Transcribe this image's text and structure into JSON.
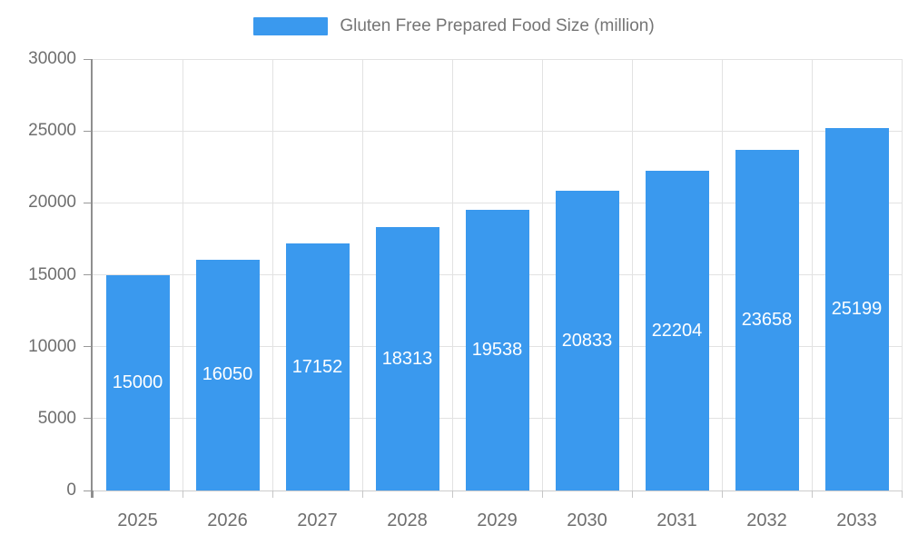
{
  "legend": {
    "label": "Gluten Free Prepared Food Size (million)"
  },
  "colors": {
    "bar": "#3A99EE",
    "value_label": "#FFFFFF",
    "axis_text": "#6E6E6E",
    "legend_text": "#757575",
    "gridline": "#E2E2E2",
    "axis_line": "#8F8F8F"
  },
  "chart_data": {
    "type": "bar",
    "title": "",
    "xlabel": "",
    "ylabel": "",
    "categories": [
      "2025",
      "2026",
      "2027",
      "2028",
      "2029",
      "2030",
      "2031",
      "2032",
      "2033"
    ],
    "series": [
      {
        "name": "Gluten Free Prepared Food Size (million)",
        "values": [
          15000,
          16050,
          17152,
          18313,
          19538,
          20833,
          22204,
          23658,
          25199
        ]
      }
    ],
    "value_labels": [
      "15000",
      "16050",
      "17152",
      "18313",
      "19538",
      "20833",
      "22204",
      "23658",
      "25199"
    ],
    "value_labels_position": "inside-center",
    "ylim": [
      0,
      30000
    ],
    "yticks": [
      0,
      5000,
      10000,
      15000,
      20000,
      25000,
      30000
    ],
    "ytick_labels": [
      "0",
      "5000",
      "10000",
      "15000",
      "20000",
      "25000",
      "30000"
    ],
    "grid": true,
    "grid_vertical": true,
    "legend_position": "top-center"
  }
}
